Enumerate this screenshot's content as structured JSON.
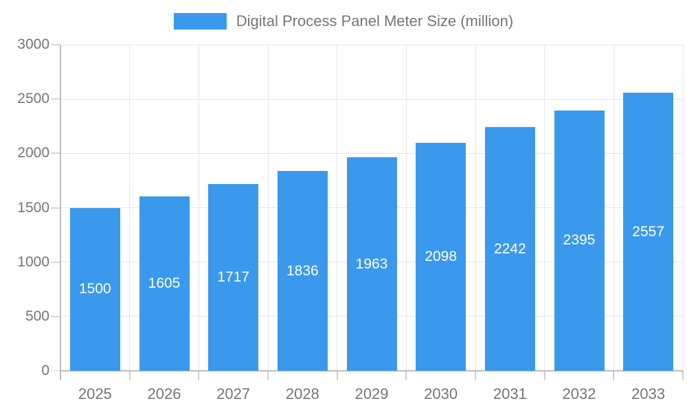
{
  "legend": {
    "label": "Digital Process Panel Meter Size (million)"
  },
  "colors": {
    "bar": "#3A99EC",
    "grid": "#E6E6E6",
    "axis": "#BDBDBD",
    "tick": "#D6D6D6",
    "text": "#757575",
    "value_label": "#FFFFFF",
    "background": "#FFFFFF"
  },
  "chart_data": {
    "type": "bar",
    "title": "Digital Process Panel Meter Size (million)",
    "categories": [
      "2025",
      "2026",
      "2027",
      "2028",
      "2029",
      "2030",
      "2031",
      "2032",
      "2033"
    ],
    "values": [
      1500,
      1605,
      1717,
      1836,
      1963,
      2098,
      2242,
      2395,
      2557
    ],
    "xlabel": "",
    "ylabel": "",
    "ylim": [
      0,
      3000
    ],
    "yticks": [
      0,
      500,
      1000,
      1500,
      2000,
      2500,
      3000
    ],
    "grid": true,
    "legend_position": "top",
    "value_label_position": "inside-center"
  }
}
